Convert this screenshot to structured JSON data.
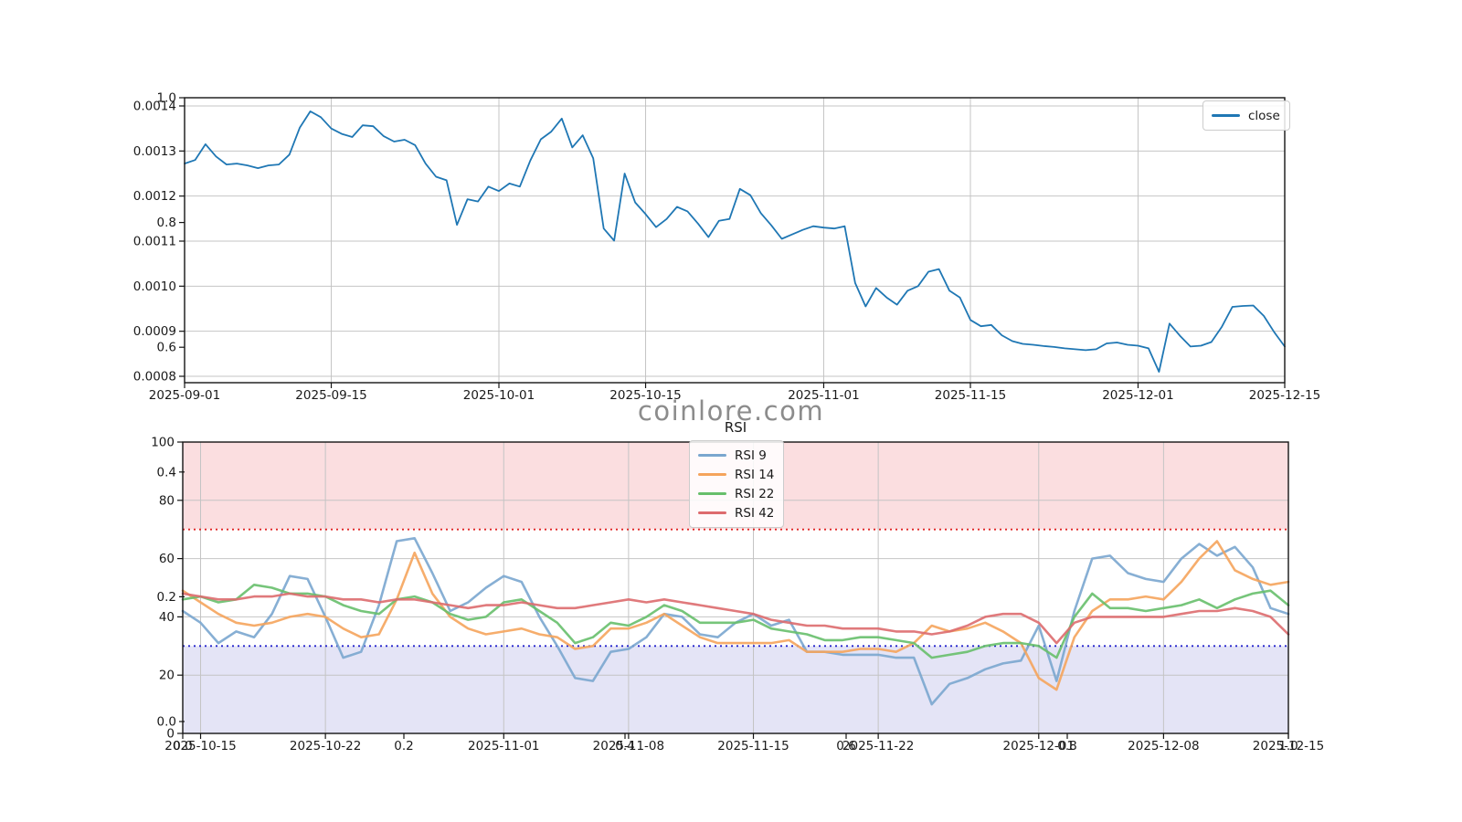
{
  "watermark": "coinlore.com",
  "colors": {
    "close": "#1f77b4",
    "rsi9": "#7aa6cf",
    "rsi14": "#f5a45c",
    "rsi22": "#67bf6b",
    "rsi42": "#dd6b6e",
    "overbought_band": "#fbdee0",
    "oversold_band": "#e4e4f6",
    "overbought_dotted": "#e02424",
    "oversold_dotted": "#2424cc",
    "grid": "#c4c4c4",
    "spine": "#141414",
    "watermark": "#8c8c8c"
  },
  "figure_axis_labels": {
    "y": [
      "1.0",
      "0.8",
      "0.6",
      "0.4",
      "0.2",
      "0.0"
    ],
    "x": [
      "0.0",
      "0.2",
      "0.4",
      "0.6",
      "0.8",
      "1.0"
    ]
  },
  "chart_data": [
    {
      "type": "line",
      "title": "",
      "x_start": "2025-09-01",
      "x_freq": "daily",
      "x_tick_labels": [
        "2025-09-01",
        "2025-09-15",
        "2025-10-01",
        "2025-10-15",
        "2025-11-01",
        "2025-11-15",
        "2025-12-01",
        "2025-12-15"
      ],
      "x_tick_index": [
        0,
        14,
        30,
        44,
        61,
        75,
        91,
        105
      ],
      "y_ticks": [
        0.0014,
        0.0013,
        0.0012,
        0.0011,
        0.001,
        0.0009,
        0.0008
      ],
      "y_tick_labels": [
        "0.0014",
        "0.0013",
        "0.0012",
        "0.0011",
        "0.0010",
        "0.0009",
        "0.0008"
      ],
      "ylim": [
        0.000786,
        0.001419
      ],
      "grid": true,
      "legend_position": "upper right",
      "series": [
        {
          "name": "close",
          "color": "#1f77b4",
          "values": [
            0.001272,
            0.00128,
            0.001315,
            0.001288,
            0.00127,
            0.001272,
            0.001268,
            0.001262,
            0.001268,
            0.00127,
            0.001292,
            0.001352,
            0.001388,
            0.001375,
            0.00135,
            0.001338,
            0.001331,
            0.001357,
            0.001355,
            0.001333,
            0.001321,
            0.001325,
            0.001313,
            0.001272,
            0.001243,
            0.001235,
            0.001136,
            0.001193,
            0.001188,
            0.001221,
            0.001211,
            0.001228,
            0.001221,
            0.001279,
            0.001326,
            0.001343,
            0.001372,
            0.001308,
            0.001335,
            0.001284,
            0.001128,
            0.001101,
            0.00125,
            0.001186,
            0.00116,
            0.001131,
            0.001149,
            0.001176,
            0.001166,
            0.001139,
            0.001109,
            0.001145,
            0.001149,
            0.001216,
            0.001202,
            0.001162,
            0.001135,
            0.001105,
            0.001115,
            0.001125,
            0.001133,
            0.00113,
            0.001128,
            0.001133,
            0.001007,
            0.000955,
            0.000996,
            0.000975,
            0.000959,
            0.00099,
            0.001,
            0.001032,
            0.001038,
            0.00099,
            0.000975,
            0.000925,
            0.000911,
            0.000914,
            0.000891,
            0.000878,
            0.000872,
            0.00087,
            0.000867,
            0.000865,
            0.000862,
            0.00086,
            0.000858,
            0.00086,
            0.000873,
            0.000875,
            0.00087,
            0.000868,
            0.000862,
            0.00081,
            0.000917,
            0.00089,
            0.000866,
            0.000868,
            0.000876,
            0.00091,
            0.000954,
            0.000956,
            0.000957,
            0.000934,
            0.000898,
            0.000866
          ]
        }
      ]
    },
    {
      "type": "line",
      "title": "RSI",
      "x_start": "2025-10-14",
      "x_freq": "daily",
      "x_tick_labels": [
        "2025-10-15",
        "2025-10-22",
        "2025-11-01",
        "2025-11-08",
        "2025-11-15",
        "2025-11-22",
        "2025-12-01",
        "2025-12-08",
        "2025-12-15"
      ],
      "x_tick_index": [
        1,
        8,
        18,
        25,
        32,
        39,
        48,
        55,
        62
      ],
      "y_ticks": [
        100,
        80,
        60,
        40,
        20,
        0
      ],
      "y_tick_labels": [
        "100",
        "80",
        "60",
        "40",
        "20",
        "0"
      ],
      "ylim": [
        0,
        100
      ],
      "grid": true,
      "legend_position": "upper center-left",
      "overbought_level": 70,
      "oversold_level": 30,
      "bands": [
        {
          "from": 70,
          "to": 100,
          "color_key": "overbought_band"
        },
        {
          "from": 0,
          "to": 30,
          "color_key": "oversold_band"
        }
      ],
      "series": [
        {
          "name": "RSI 9",
          "color": "#7aa6cf",
          "values": [
            42,
            38,
            31,
            35,
            33,
            41,
            54,
            53,
            40,
            26,
            28,
            44,
            66,
            67,
            55,
            42,
            45,
            50,
            54,
            52,
            40,
            30,
            19,
            18,
            28,
            29,
            33,
            41,
            40,
            34,
            33,
            38,
            41,
            37,
            39,
            28,
            28,
            27,
            27,
            27,
            26,
            26,
            10,
            17,
            19,
            22,
            24,
            25,
            37,
            18,
            42,
            60,
            61,
            55,
            53,
            52,
            60,
            65,
            61,
            64,
            57,
            43,
            41
          ]
        },
        {
          "name": "RSI 14",
          "color": "#f5a45c",
          "values": [
            49,
            45,
            41,
            38,
            37,
            38,
            40,
            41,
            40,
            36,
            33,
            34,
            46,
            62,
            48,
            40,
            36,
            34,
            35,
            36,
            34,
            33,
            29,
            30,
            36,
            36,
            38,
            41,
            37,
            33,
            31,
            31,
            31,
            31,
            32,
            28,
            28,
            28,
            29,
            29,
            28,
            31,
            37,
            35,
            36,
            38,
            35,
            31,
            19,
            15,
            33,
            42,
            46,
            46,
            47,
            46,
            52,
            60,
            66,
            56,
            53,
            51,
            52
          ]
        },
        {
          "name": "RSI 22",
          "color": "#67bf6b",
          "values": [
            46,
            47,
            45,
            46,
            51,
            50,
            48,
            48,
            47,
            44,
            42,
            41,
            46,
            47,
            45,
            41,
            39,
            40,
            45,
            46,
            42,
            38,
            31,
            33,
            38,
            37,
            40,
            44,
            42,
            38,
            38,
            38,
            39,
            36,
            35,
            34,
            32,
            32,
            33,
            33,
            32,
            31,
            26,
            27,
            28,
            30,
            31,
            31,
            30,
            26,
            40,
            48,
            43,
            43,
            42,
            43,
            44,
            46,
            43,
            46,
            48,
            49,
            44
          ]
        },
        {
          "name": "RSI 42",
          "color": "#dd6b6e",
          "values": [
            48,
            47,
            46,
            46,
            47,
            47,
            48,
            47,
            47,
            46,
            46,
            45,
            46,
            46,
            45,
            44,
            43,
            44,
            44,
            45,
            44,
            43,
            43,
            44,
            45,
            46,
            45,
            46,
            45,
            44,
            43,
            42,
            41,
            39,
            38,
            37,
            37,
            36,
            36,
            36,
            35,
            35,
            34,
            35,
            37,
            40,
            41,
            41,
            38,
            31,
            38,
            40,
            40,
            40,
            40,
            40,
            41,
            42,
            42,
            43,
            42,
            40,
            34
          ]
        }
      ]
    }
  ]
}
